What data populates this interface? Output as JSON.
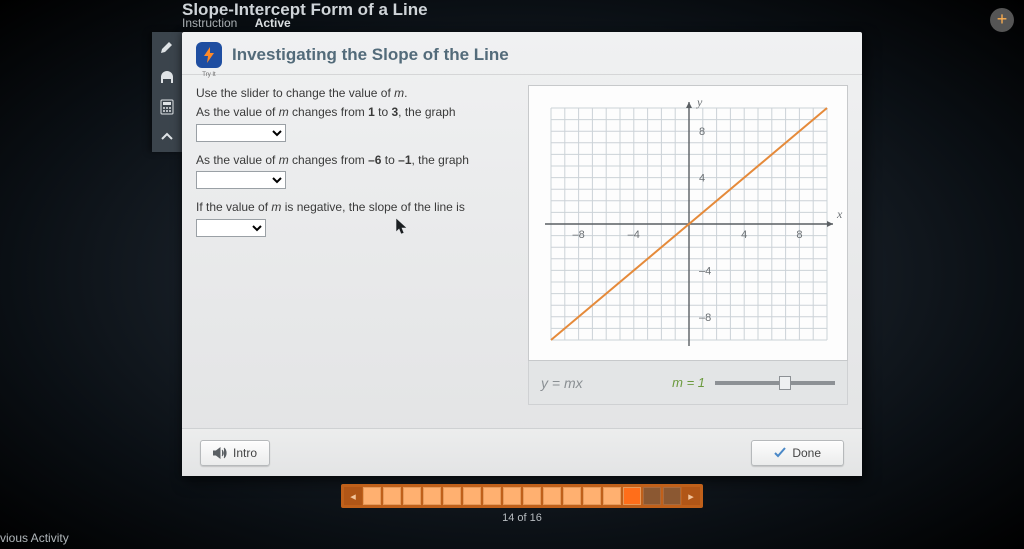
{
  "chrome": {
    "plus_tooltip": "+",
    "lesson_title": "Slope-Intercept Form of a Line",
    "tabs": {
      "instruction": "Instruction",
      "active": "Active"
    },
    "prev_activity": "vious Activity"
  },
  "panel": {
    "tryit_label": "Try It",
    "title": "Investigating the Slope of the Line",
    "intro_btn": "Intro",
    "done_btn": "Done"
  },
  "questions": {
    "line1": "Use the slider to change the value of ",
    "var_m": "m",
    "line1_end": ".",
    "line2a": "As the value of ",
    "line2b": " changes from ",
    "line2_from": "1",
    "line2_to_word": " to ",
    "line2_to": "3",
    "line2c": ", the graph",
    "line3a": "As the value of ",
    "line3b": " changes from ",
    "line3_from": "–6",
    "line3_to_word": " to ",
    "line3_to": "–1",
    "line3c": ", the graph",
    "line4a": "If the value of ",
    "line4b": " is negative, the slope of the line is"
  },
  "graph": {
    "type": "line",
    "xlim": [
      -10,
      10
    ],
    "ylim": [
      -10,
      10
    ],
    "xticks": [
      -8,
      -4,
      4,
      8
    ],
    "yticks": [
      -8,
      -4,
      4,
      8
    ],
    "xlabel": "x",
    "ylabel": "y",
    "grid_color": "#cbd2d7",
    "axis_color": "#5a5f63",
    "background_color": "#fdfdfd",
    "line_color": "#e58a3a",
    "line_width": 2,
    "series": {
      "slope": 1,
      "intercept": 0
    },
    "equation": "y = mx",
    "slider": {
      "label": "m = 1",
      "min": -6,
      "max": 6,
      "value": 1
    }
  },
  "progress": {
    "current": 14,
    "total": 16,
    "label": "14 of 16",
    "states": [
      "done",
      "done",
      "done",
      "done",
      "done",
      "done",
      "done",
      "done",
      "done",
      "done",
      "done",
      "done",
      "done",
      "cur",
      "todo",
      "todo"
    ]
  }
}
